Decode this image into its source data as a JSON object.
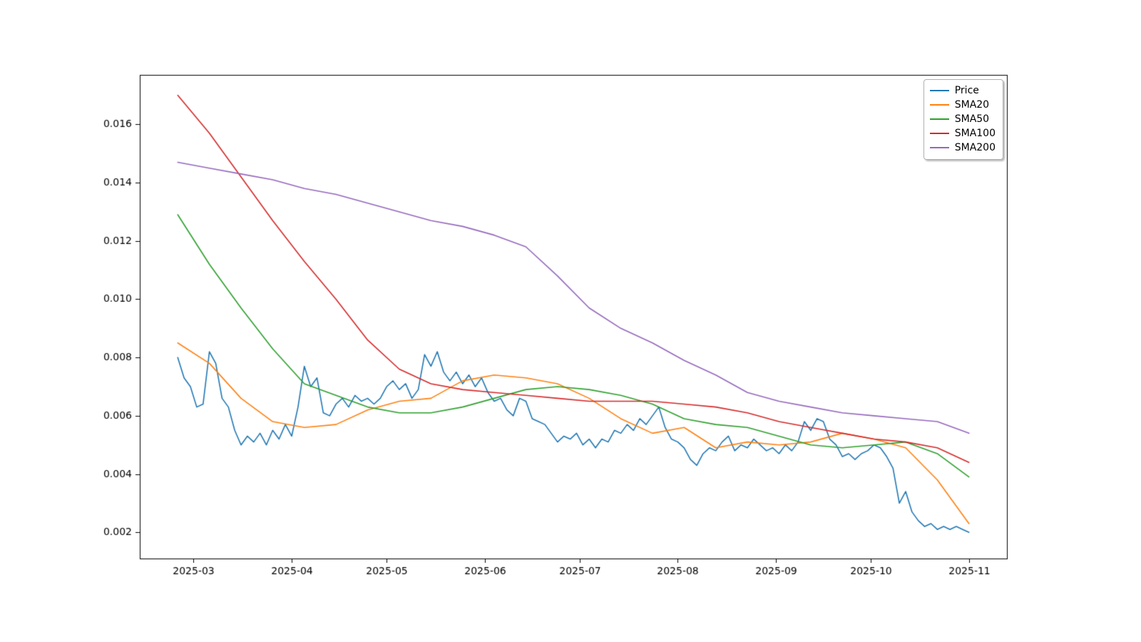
{
  "figure": {
    "background": "#ffffff"
  },
  "chart_data": {
    "type": "line",
    "title": "",
    "xlabel": "",
    "ylabel": "",
    "grid": false,
    "x_unit": "days since 2025-02-24",
    "xlim": [
      -12,
      262
    ],
    "ylim": [
      0.0011,
      0.0177
    ],
    "x_ticks": {
      "positions": [
        5,
        36,
        66,
        97,
        127,
        158,
        189,
        219,
        250
      ],
      "labels": [
        "2025-03",
        "2025-04",
        "2025-05",
        "2025-06",
        "2025-07",
        "2025-08",
        "2025-09",
        "2025-10",
        "2025-11"
      ]
    },
    "y_ticks": {
      "positions": [
        0.002,
        0.004,
        0.006,
        0.008,
        0.01,
        0.012,
        0.014,
        0.016
      ],
      "labels": [
        "0.002",
        "0.004",
        "0.006",
        "0.008",
        "0.010",
        "0.012",
        "0.014",
        "0.016"
      ]
    },
    "legend": {
      "location": "upper right"
    },
    "series": [
      {
        "name": "Price",
        "color": "#1f77b4",
        "x_start": 0,
        "x_step": 2,
        "values": [
          0.008,
          0.0073,
          0.007,
          0.0063,
          0.0064,
          0.0082,
          0.0078,
          0.0066,
          0.0063,
          0.0055,
          0.005,
          0.0053,
          0.0051,
          0.0054,
          0.005,
          0.0055,
          0.0052,
          0.0057,
          0.0053,
          0.0063,
          0.0077,
          0.007,
          0.0073,
          0.0061,
          0.006,
          0.0064,
          0.0066,
          0.0063,
          0.0067,
          0.0065,
          0.0066,
          0.0064,
          0.0066,
          0.007,
          0.0072,
          0.0069,
          0.0071,
          0.0066,
          0.0069,
          0.0081,
          0.0077,
          0.0082,
          0.0075,
          0.0072,
          0.0075,
          0.0071,
          0.0074,
          0.007,
          0.0073,
          0.0068,
          0.0065,
          0.0066,
          0.0062,
          0.006,
          0.0066,
          0.0065,
          0.0059,
          0.0058,
          0.0057,
          0.0054,
          0.0051,
          0.0053,
          0.0052,
          0.0054,
          0.005,
          0.0052,
          0.0049,
          0.0052,
          0.0051,
          0.0055,
          0.0054,
          0.0057,
          0.0055,
          0.0059,
          0.0057,
          0.006,
          0.0063,
          0.0056,
          0.0052,
          0.0051,
          0.0049,
          0.0045,
          0.0043,
          0.0047,
          0.0049,
          0.0048,
          0.0051,
          0.0053,
          0.0048,
          0.005,
          0.0049,
          0.0052,
          0.005,
          0.0048,
          0.0049,
          0.0047,
          0.005,
          0.0048,
          0.0051,
          0.0058,
          0.0055,
          0.0059,
          0.0058,
          0.0052,
          0.005,
          0.0046,
          0.0047,
          0.0045,
          0.0047,
          0.0048,
          0.005,
          0.0049,
          0.0046,
          0.0042,
          0.003,
          0.0034,
          0.0027,
          0.0024,
          0.0022,
          0.0023,
          0.0021,
          0.0022,
          0.0021,
          0.0022,
          0.0021,
          0.002
        ]
      },
      {
        "name": "SMA20",
        "color": "#ff7f0e",
        "x_start": 0,
        "x_step": 10,
        "values": [
          0.0085,
          0.0078,
          0.0066,
          0.0058,
          0.0056,
          0.0057,
          0.0062,
          0.0065,
          0.0066,
          0.0072,
          0.0074,
          0.0073,
          0.0071,
          0.0066,
          0.0059,
          0.0054,
          0.0056,
          0.0049,
          0.0051,
          0.005,
          0.0051,
          0.0054,
          0.0052,
          0.0049,
          0.0038,
          0.0023
        ]
      },
      {
        "name": "SMA50",
        "color": "#2ca02c",
        "x_start": 0,
        "x_step": 10,
        "values": [
          0.0129,
          0.0112,
          0.0097,
          0.0083,
          0.0071,
          0.0067,
          0.0063,
          0.0061,
          0.0061,
          0.0063,
          0.0066,
          0.0069,
          0.007,
          0.0069,
          0.0067,
          0.0064,
          0.0059,
          0.0057,
          0.0056,
          0.0053,
          0.005,
          0.0049,
          0.005,
          0.0051,
          0.0047,
          0.0039
        ]
      },
      {
        "name": "SMA100",
        "color": "#d62728",
        "x_start": 0,
        "x_step": 10,
        "values": [
          0.017,
          0.0157,
          0.0142,
          0.0127,
          0.0113,
          0.01,
          0.0086,
          0.0076,
          0.0071,
          0.0069,
          0.0068,
          0.0067,
          0.0066,
          0.0065,
          0.0065,
          0.0065,
          0.0064,
          0.0063,
          0.0061,
          0.0058,
          0.0056,
          0.0054,
          0.0052,
          0.0051,
          0.0049,
          0.0044
        ]
      },
      {
        "name": "SMA200",
        "color": "#9467bd",
        "x_start": 0,
        "x_step": 10,
        "values": [
          0.0147,
          0.0145,
          0.0143,
          0.0141,
          0.0138,
          0.0136,
          0.0133,
          0.013,
          0.0127,
          0.0125,
          0.0122,
          0.0118,
          0.0108,
          0.0097,
          0.009,
          0.0085,
          0.0079,
          0.0074,
          0.0068,
          0.0065,
          0.0063,
          0.0061,
          0.006,
          0.0059,
          0.0058,
          0.0054
        ]
      }
    ]
  }
}
